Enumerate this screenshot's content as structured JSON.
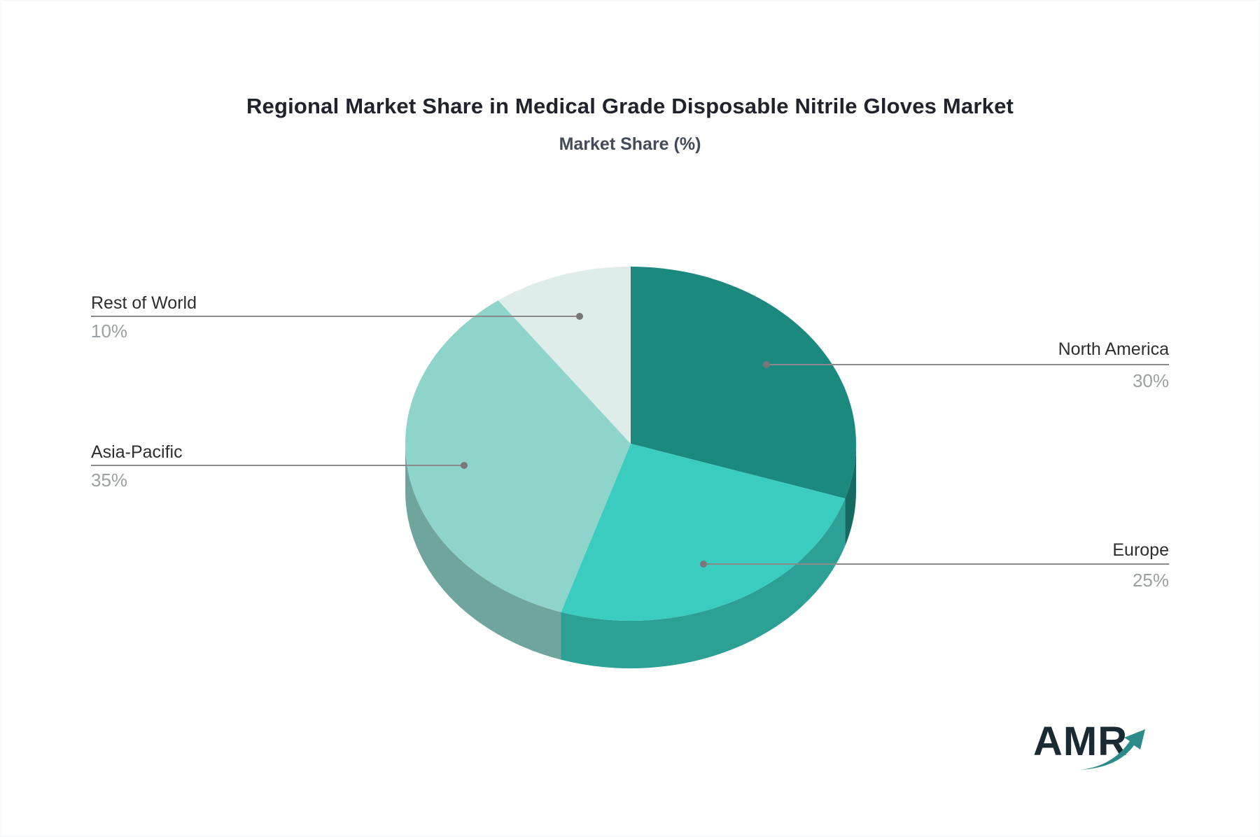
{
  "title": "Regional Market Share in Medical Grade Disposable Nitrile Gloves Market",
  "subtitle": "Market Share (%)",
  "logo": {
    "text": "AMR",
    "arrow_color": "#2c8a8a",
    "text_color": "#1a2a33"
  },
  "colors": {
    "leader_line": "#8a8a8a",
    "leader_dot": "#777777",
    "label_text": "#2e2e2e",
    "value_text": "#9ba0a4"
  },
  "chart_data": {
    "type": "pie",
    "style": "3d",
    "title": "Regional Market Share in Medical Grade Disposable Nitrile Gloves Market",
    "subtitle": "Market Share (%)",
    "unit": "%",
    "start_angle_deg": 0,
    "direction": "clockwise",
    "legend_position": "callout-labels",
    "slices": [
      {
        "label": "North America",
        "value": 30,
        "display": "30%",
        "color": "#1b897e"
      },
      {
        "label": "Europe",
        "value": 25,
        "display": "25%",
        "color": "#3acdbf"
      },
      {
        "label": "Asia-Pacific",
        "value": 35,
        "display": "35%",
        "color": "#8fd4cb"
      },
      {
        "label": "Rest of World",
        "value": 10,
        "display": "10%",
        "color": "#deedea"
      }
    ]
  }
}
